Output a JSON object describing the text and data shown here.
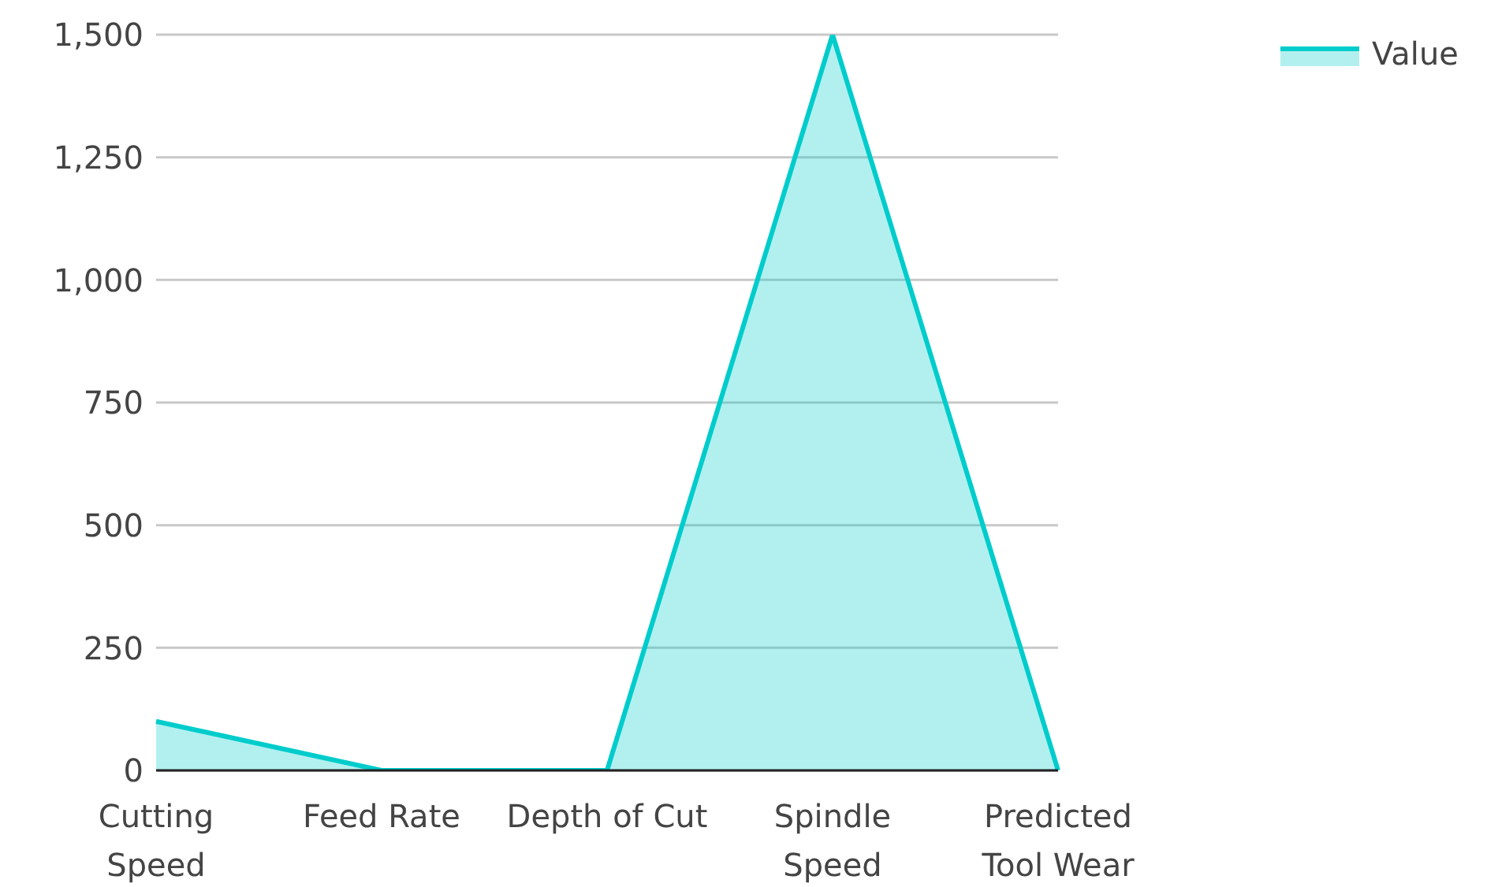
{
  "chart_data": {
    "type": "area",
    "categories": [
      "Cutting Speed",
      "Feed Rate",
      "Depth of Cut",
      "Spindle Speed",
      "Predicted Tool Wear"
    ],
    "series": [
      {
        "name": "Value",
        "color": "#00cccc",
        "values": [
          100,
          0,
          0,
          1500,
          0
        ]
      }
    ],
    "ylim": [
      0,
      1500
    ],
    "yticks": [
      0,
      250,
      500,
      750,
      {
        "value": 1000,
        "label": "1,000"
      },
      {
        "value": 1250,
        "label": "1,250"
      },
      {
        "value": 1500,
        "label": "1,500"
      }
    ],
    "grid": "y",
    "legend": "top right"
  }
}
